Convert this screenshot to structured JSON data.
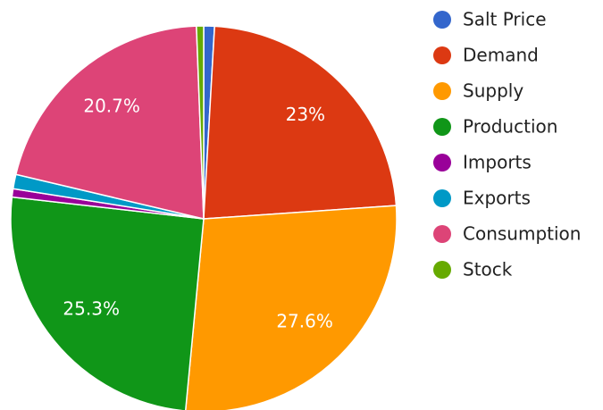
{
  "chart_data": {
    "type": "pie",
    "categories": [
      "Salt Price",
      "Demand",
      "Supply",
      "Production",
      "Imports",
      "Exports",
      "Consumption",
      "Stock"
    ],
    "values": [
      0.9,
      23,
      27.6,
      25.3,
      0.7,
      1.2,
      20.7,
      0.6
    ],
    "value_labels": [
      null,
      "23%",
      "27.6%",
      "25.3%",
      null,
      null,
      "20.7%",
      null
    ],
    "colors": [
      "#3366cc",
      "#dc3912",
      "#ff9900",
      "#109618",
      "#990099",
      "#0099c6",
      "#dd4477",
      "#66aa00"
    ],
    "legend": "right"
  }
}
